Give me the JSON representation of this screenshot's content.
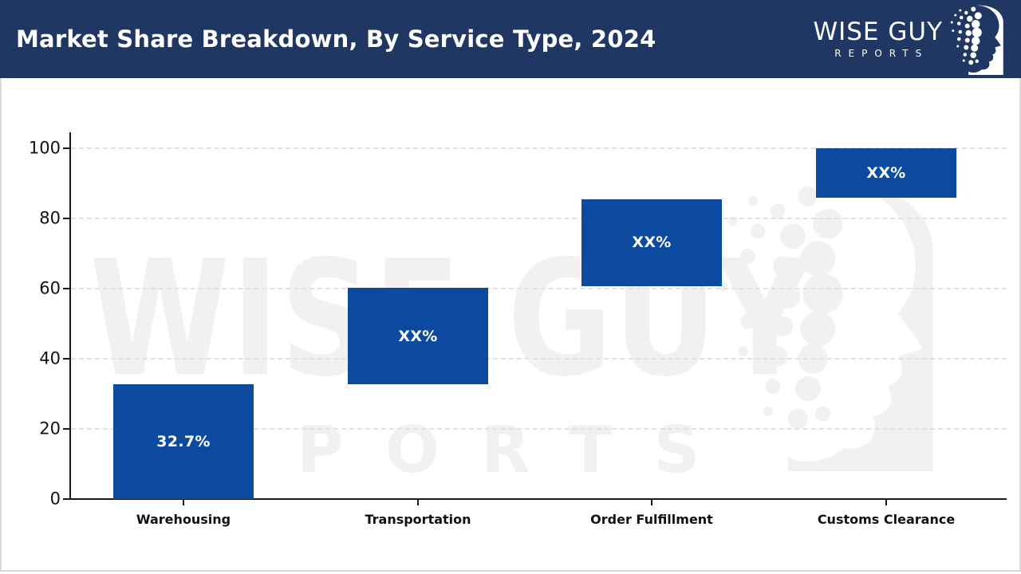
{
  "header": {
    "title": "Market Share Breakdown, By Service Type, 2024",
    "brand": {
      "name": "WISE GUY",
      "subtitle": "REPORTS"
    }
  },
  "watermark": {
    "line1": "WISE GUY",
    "line2": "REPORTS"
  },
  "chart_data": {
    "type": "bar",
    "subtype": "waterfall",
    "title": "Market Share Breakdown, By Service Type, 2024",
    "categories": [
      "Warehousing",
      "Transportation",
      "Order Fulfillment",
      "Customs Clearance"
    ],
    "segments": [
      {
        "category": "Warehousing",
        "start": 0,
        "end": 32.7,
        "label": "32.7%"
      },
      {
        "category": "Transportation",
        "start": 32.7,
        "end": 60.2,
        "label": "XX%"
      },
      {
        "category": "Order Fulfillment",
        "start": 60.7,
        "end": 85.5,
        "label": "XX%"
      },
      {
        "category": "Customs Clearance",
        "start": 85.8,
        "end": 100,
        "label": "XX%"
      }
    ],
    "xlabel": "",
    "ylabel": "",
    "ylim": [
      0,
      105
    ],
    "yticks": [
      0,
      20,
      40,
      60,
      80,
      100
    ],
    "grid": "horizontal-dashed",
    "legend": "none",
    "colors": {
      "bar": "#0b4a9e",
      "bar_label": "#ffffff",
      "header_bg": "#203764",
      "grid": "#e2e2e2",
      "axis": "#1a1a1a",
      "watermark": "#f1f1f1"
    }
  }
}
